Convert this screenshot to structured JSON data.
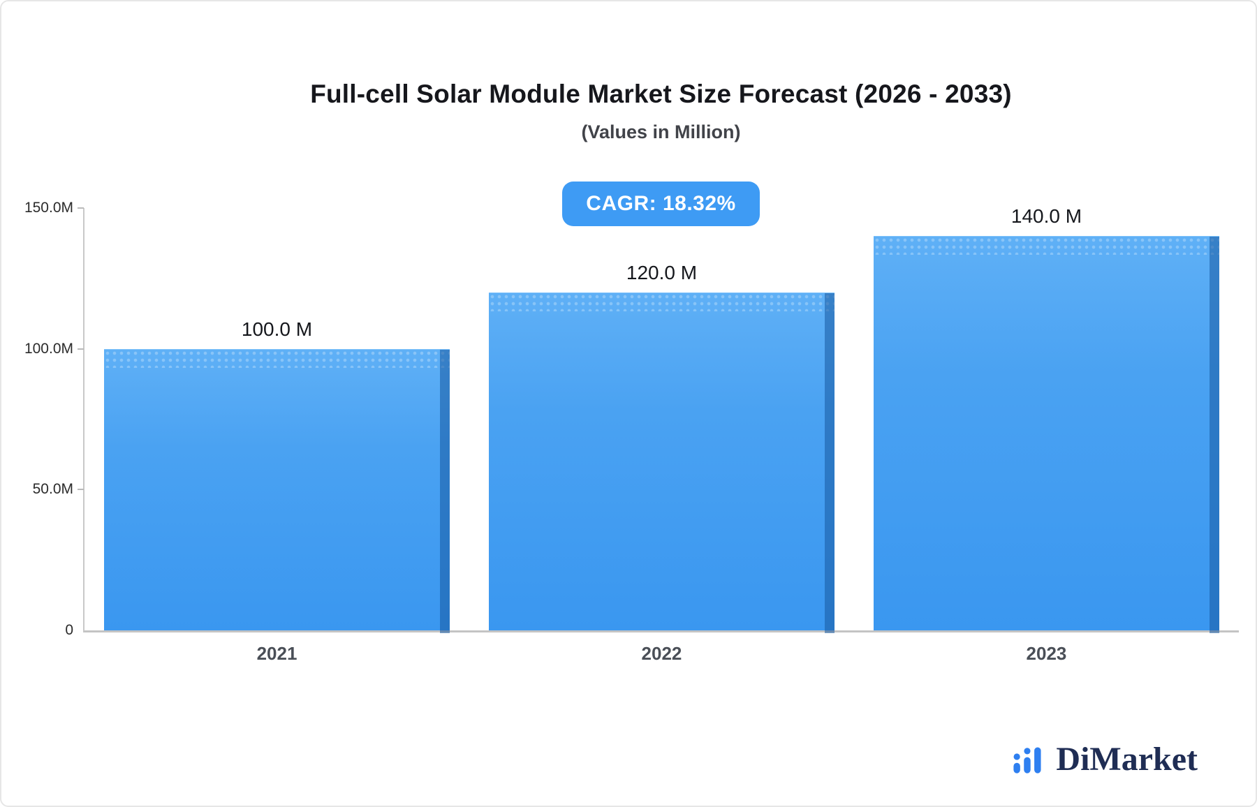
{
  "header": {
    "title": "Full-cell Solar Module Market Size Forecast (2026 - 2033)",
    "subtitle": "(Values in Million)"
  },
  "badge": {
    "label": "CAGR: 18.32%",
    "color": "#3e9bf4"
  },
  "logo": {
    "text": "DiMarket",
    "icon": "bar-chart-icon",
    "icon_color": "#2e7ff0",
    "text_color": "#1f2d54"
  },
  "chart_data": {
    "type": "bar",
    "title": "Full-cell Solar Module Market Size Forecast (2026 - 2033)",
    "subtitle": "(Values in Million)",
    "categories": [
      "2021",
      "2022",
      "2023"
    ],
    "values": [
      100.0,
      120.0,
      140.0
    ],
    "value_labels": [
      "100.0 M",
      "120.0 M",
      "140.0 M"
    ],
    "xlabel": "",
    "ylabel": "",
    "ylim": [
      0,
      150
    ],
    "yticks": [
      {
        "value": 150,
        "label": "150.0M"
      },
      {
        "value": 100,
        "label": "100.0M"
      },
      {
        "value": 50,
        "label": "50.0M"
      },
      {
        "value": 0,
        "label": "0"
      }
    ],
    "grid": false,
    "legend": false,
    "bar_color_top": "#5fb0f6",
    "bar_color_bottom": "#3a97f0",
    "bar_edge_color": "#185aa0"
  }
}
